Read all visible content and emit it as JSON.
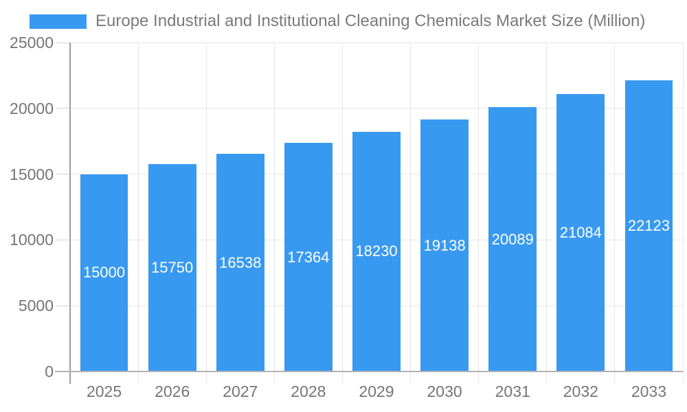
{
  "chart_data": {
    "type": "bar",
    "title": "Europe Industrial and Institutional Cleaning Chemicals Market Size (Million)",
    "categories": [
      "2025",
      "2026",
      "2027",
      "2028",
      "2029",
      "2030",
      "2031",
      "2032",
      "2033"
    ],
    "values": [
      15000,
      15750,
      16538,
      17364,
      18230,
      19138,
      20089,
      21084,
      22123
    ],
    "xlabel": "",
    "ylabel": "",
    "ylim": [
      0,
      25000
    ],
    "yticks": [
      0,
      5000,
      10000,
      15000,
      20000,
      25000
    ],
    "grid": true,
    "legend_position": "top-left",
    "bar_color": "#3899f0",
    "value_label_color": "#ffffff",
    "tick_label_color": "#757575",
    "title_color": "#7a7a7a",
    "grid_color": "#e6e6e6",
    "axis_color": "#a9a9a9"
  }
}
